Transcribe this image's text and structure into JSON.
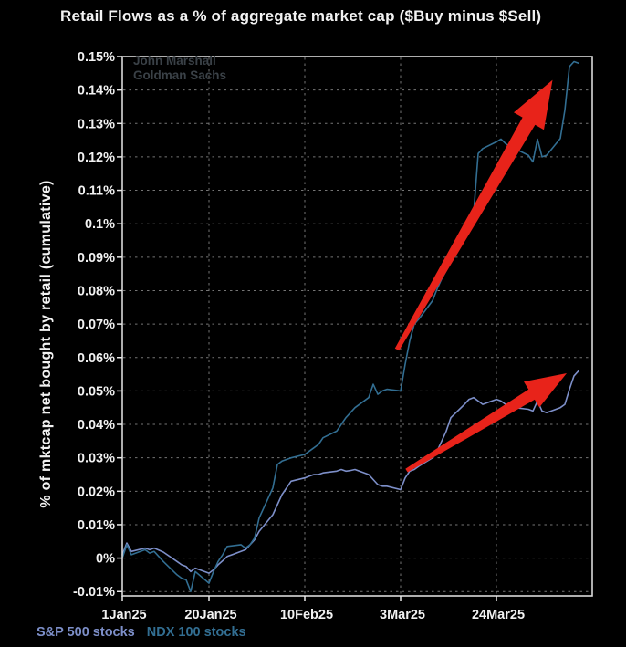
{
  "watermark": {
    "line1": "John Marshall",
    "line2": "Goldman Sachs"
  },
  "chart_data": {
    "type": "line",
    "title": "Retail Flows as a % of aggregate market cap ($Buy minus $Sell)",
    "xlabel": "",
    "ylabel": "% of mktcap net bought by retail (cumulative)",
    "x_unit": "days since 1Jan25",
    "x_domain": [
      0,
      103
    ],
    "y_domain_pct": [
      -0.0113,
      0.15
    ],
    "grid": {
      "dashed": true,
      "color": "#8a8a8a"
    },
    "legend_position": "bottom-left",
    "x_ticks": [
      {
        "day": 0,
        "label": "1Jan25"
      },
      {
        "day": 19,
        "label": "20Jan25"
      },
      {
        "day": 40,
        "label": "10Feb25"
      },
      {
        "day": 61,
        "label": "3Mar25"
      },
      {
        "day": 82,
        "label": "24Mar25"
      }
    ],
    "y_ticks": [
      {
        "value": 0.15,
        "label": "0.15%"
      },
      {
        "value": 0.14,
        "label": "0.14%"
      },
      {
        "value": 0.13,
        "label": "0.13%"
      },
      {
        "value": 0.12,
        "label": "0.12%"
      },
      {
        "value": 0.11,
        "label": "0.11%"
      },
      {
        "value": 0.1,
        "label": "0.1%"
      },
      {
        "value": 0.09,
        "label": "0.09%"
      },
      {
        "value": 0.08,
        "label": "0.08%"
      },
      {
        "value": 0.07,
        "label": "0.07%"
      },
      {
        "value": 0.06,
        "label": "0.06%"
      },
      {
        "value": 0.05,
        "label": "0.05%"
      },
      {
        "value": 0.04,
        "label": "0.04%"
      },
      {
        "value": 0.03,
        "label": "0.03%"
      },
      {
        "value": 0.02,
        "label": "0.02%"
      },
      {
        "value": 0.01,
        "label": "0.01%"
      },
      {
        "value": 0.0,
        "label": "0%"
      },
      {
        "value": -0.01,
        "label": "-0.01%"
      }
    ],
    "series": [
      {
        "name": "S&P 500 stocks",
        "color": "#7d8fc9",
        "points": [
          [
            0,
            0.001
          ],
          [
            1,
            0.0045
          ],
          [
            2,
            0.002
          ],
          [
            5,
            0.003
          ],
          [
            6,
            0.0025
          ],
          [
            7,
            0.003
          ],
          [
            9,
            0.0018
          ],
          [
            12,
            -0.001
          ],
          [
            13,
            -0.002
          ],
          [
            14,
            -0.0025
          ],
          [
            15,
            -0.004
          ],
          [
            16,
            -0.003
          ],
          [
            19,
            -0.0045
          ],
          [
            20,
            -0.0035
          ],
          [
            21,
            -0.002
          ],
          [
            22,
            -0.0008
          ],
          [
            23,
            0.0005
          ],
          [
            26,
            0.002
          ],
          [
            27,
            0.0025
          ],
          [
            28,
            0.004
          ],
          [
            29,
            0.0055
          ],
          [
            30,
            0.008
          ],
          [
            33,
            0.013
          ],
          [
            34,
            0.016
          ],
          [
            35,
            0.019
          ],
          [
            36,
            0.021
          ],
          [
            37,
            0.023
          ],
          [
            40,
            0.024
          ],
          [
            41,
            0.0245
          ],
          [
            42,
            0.025
          ],
          [
            43,
            0.025
          ],
          [
            44,
            0.0255
          ],
          [
            47,
            0.026
          ],
          [
            48,
            0.0265
          ],
          [
            49,
            0.026
          ],
          [
            50,
            0.0262
          ],
          [
            51,
            0.0265
          ],
          [
            54,
            0.025
          ],
          [
            55,
            0.0235
          ],
          [
            56,
            0.022
          ],
          [
            57,
            0.0215
          ],
          [
            58,
            0.0215
          ],
          [
            61,
            0.0205
          ],
          [
            62,
            0.024
          ],
          [
            63,
            0.026
          ],
          [
            64,
            0.0265
          ],
          [
            65,
            0.0275
          ],
          [
            68,
            0.03
          ],
          [
            69,
            0.032
          ],
          [
            70,
            0.035
          ],
          [
            71,
            0.038
          ],
          [
            72,
            0.042
          ],
          [
            75,
            0.046
          ],
          [
            76,
            0.0475
          ],
          [
            77,
            0.048
          ],
          [
            78,
            0.047
          ],
          [
            79,
            0.046
          ],
          [
            82,
            0.0475
          ],
          [
            83,
            0.047
          ],
          [
            84,
            0.046
          ],
          [
            85,
            0.0455
          ],
          [
            86,
            0.045
          ],
          [
            89,
            0.0445
          ],
          [
            90,
            0.044
          ],
          [
            91,
            0.047
          ],
          [
            92,
            0.044
          ],
          [
            93,
            0.0435
          ],
          [
            96,
            0.045
          ],
          [
            97,
            0.046
          ],
          [
            98,
            0.0505
          ],
          [
            99,
            0.0545
          ],
          [
            100,
            0.056
          ]
        ]
      },
      {
        "name": "NDX 100 stocks",
        "color": "#326e92",
        "points": [
          [
            0,
            0.0
          ],
          [
            1,
            0.004
          ],
          [
            2,
            0.001
          ],
          [
            5,
            0.0025
          ],
          [
            6,
            0.0015
          ],
          [
            7,
            0.002
          ],
          [
            9,
            -0.001
          ],
          [
            12,
            -0.005
          ],
          [
            13,
            -0.006
          ],
          [
            14,
            -0.0065
          ],
          [
            15,
            -0.01
          ],
          [
            16,
            -0.004
          ],
          [
            19,
            -0.0075
          ],
          [
            20,
            -0.004
          ],
          [
            21,
            -0.001
          ],
          [
            22,
            0.001
          ],
          [
            23,
            0.0035
          ],
          [
            26,
            0.004
          ],
          [
            27,
            0.003
          ],
          [
            28,
            0.004
          ],
          [
            29,
            0.006
          ],
          [
            30,
            0.012
          ],
          [
            33,
            0.021
          ],
          [
            34,
            0.028
          ],
          [
            35,
            0.029
          ],
          [
            36,
            0.0295
          ],
          [
            37,
            0.03
          ],
          [
            40,
            0.031
          ],
          [
            41,
            0.032
          ],
          [
            42,
            0.033
          ],
          [
            43,
            0.034
          ],
          [
            44,
            0.036
          ],
          [
            47,
            0.038
          ],
          [
            48,
            0.04
          ],
          [
            49,
            0.042
          ],
          [
            50,
            0.0435
          ],
          [
            51,
            0.045
          ],
          [
            54,
            0.048
          ],
          [
            55,
            0.052
          ],
          [
            56,
            0.049
          ],
          [
            57,
            0.05
          ],
          [
            58,
            0.0505
          ],
          [
            61,
            0.05
          ],
          [
            62,
            0.058
          ],
          [
            63,
            0.065
          ],
          [
            64,
            0.07
          ],
          [
            65,
            0.0715
          ],
          [
            68,
            0.077
          ],
          [
            69,
            0.0805
          ],
          [
            70,
            0.0835
          ],
          [
            71,
            0.086
          ],
          [
            72,
            0.0885
          ],
          [
            75,
            0.096
          ],
          [
            76,
            0.1
          ],
          [
            77,
            0.103
          ],
          [
            78,
            0.121
          ],
          [
            79,
            0.1225
          ],
          [
            82,
            0.1245
          ],
          [
            83,
            0.1253
          ],
          [
            84,
            0.124
          ],
          [
            85,
            0.123
          ],
          [
            86,
            0.1225
          ],
          [
            89,
            0.1205
          ],
          [
            90,
            0.1185
          ],
          [
            91,
            0.1253
          ],
          [
            92,
            0.12
          ],
          [
            93,
            0.1205
          ],
          [
            96,
            0.1255
          ],
          [
            97,
            0.134
          ],
          [
            98,
            0.147
          ],
          [
            99,
            0.1485
          ],
          [
            100,
            0.148
          ]
        ]
      }
    ],
    "annotations": {
      "arrows": [
        {
          "from": [
            60.2,
            0.0624
          ],
          "to": [
            94.3,
            0.143
          ],
          "color": "#e8231a",
          "tail_width": 5,
          "shaft_width": 16,
          "head_len": 52,
          "head_width": 38
        },
        {
          "from": [
            62.3,
            0.0262
          ],
          "to": [
            97.4,
            0.0553
          ],
          "color": "#e8231a",
          "tail_width": 4.5,
          "shaft_width": 13,
          "head_len": 45,
          "head_width": 33
        }
      ]
    }
  }
}
